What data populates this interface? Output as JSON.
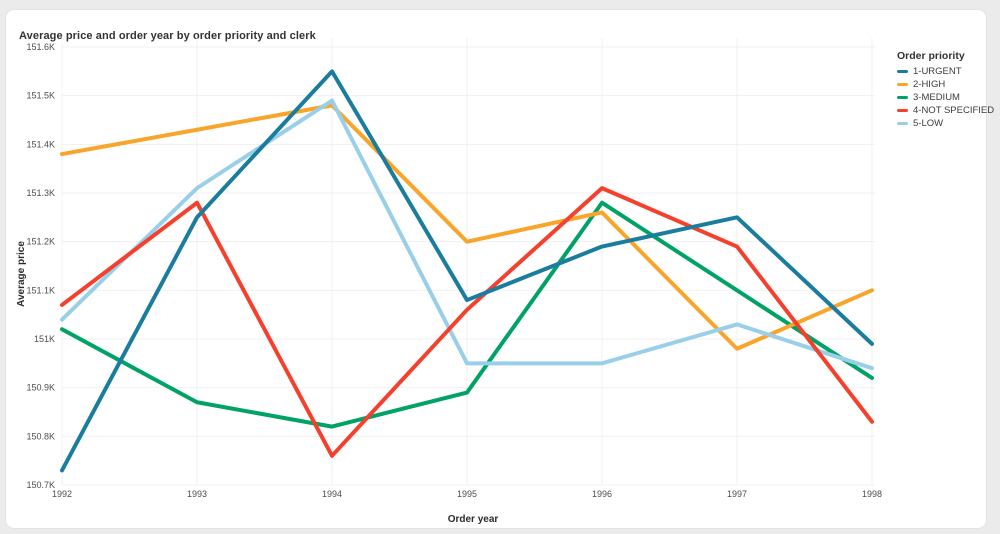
{
  "window": {
    "background": "#ebebeb",
    "card_background": "#ffffff"
  },
  "header": {
    "title": "Average price and order year by order priority and clerk"
  },
  "chart_data": {
    "type": "line",
    "title": "Average price and order year by order priority and clerk",
    "xlabel": "Order year",
    "ylabel": "Average price",
    "unit": "K",
    "grid": true,
    "x": [
      1992,
      1993,
      1994,
      1995,
      1996,
      1997,
      1998
    ],
    "x_tick_labels": [
      "1992",
      "1993",
      "1994",
      "1995",
      "1996",
      "1997",
      "1998"
    ],
    "y_ticks": [
      151.6,
      151.5,
      151.4,
      151.3,
      151.2,
      151.1,
      151.0,
      150.9,
      150.8,
      150.7
    ],
    "y_tick_labels": [
      "151.6K",
      "151.5K",
      "151.4K",
      "151.3K",
      "151.2K",
      "151.1K",
      "151K",
      "150.9K",
      "150.8K",
      "150.7K"
    ],
    "ylim": [
      150.7,
      151.6
    ],
    "legend": {
      "title": "Order priority",
      "position": "top-right-outside"
    },
    "series": [
      {
        "name": "1-URGENT",
        "color": "#1b7d9e",
        "values": [
          150.73,
          151.25,
          151.55,
          151.08,
          151.19,
          151.25,
          150.99
        ]
      },
      {
        "name": "2-HIGH",
        "color": "#f9a42b",
        "values": [
          151.38,
          151.43,
          151.48,
          151.2,
          151.26,
          150.98,
          151.1
        ]
      },
      {
        "name": "3-MEDIUM",
        "color": "#00a266",
        "values": [
          151.02,
          150.87,
          150.82,
          150.89,
          151.28,
          151.1,
          150.92
        ]
      },
      {
        "name": "4-NOT SPECIFIED",
        "color": "#f4402d",
        "values": [
          151.07,
          151.28,
          150.76,
          151.06,
          151.31,
          151.19,
          150.83
        ]
      },
      {
        "name": "5-LOW",
        "color": "#9acfe9",
        "values": [
          151.04,
          151.31,
          151.49,
          150.95,
          150.95,
          151.03,
          150.94
        ]
      }
    ]
  }
}
